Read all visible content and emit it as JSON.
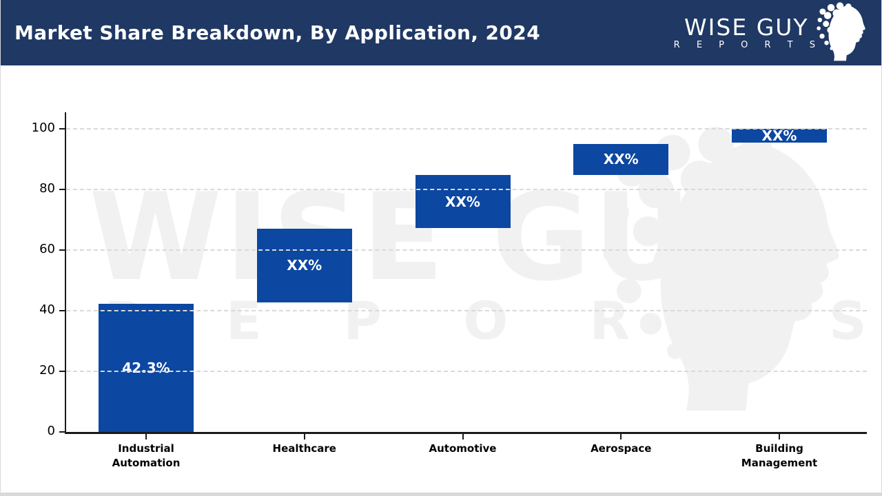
{
  "header": {
    "title": "Market Share Breakdown, By Application, 2024",
    "logo": {
      "line1": "WISE GUY",
      "line2": "R E P O R T S"
    }
  },
  "watermark": {
    "line1": "WISE GUY",
    "line2": "R E P O R T S"
  },
  "icons": {
    "logo_head": "dotted-head-profile-icon",
    "watermark_head": "dotted-head-profile-icon"
  },
  "colors": {
    "header_bg": "#1f3864",
    "bar": "#0c47a1",
    "bar_label": "#ffffff",
    "grid": "#d9d9d9",
    "axis": "#1a1a1a",
    "watermark": "#f1f1f1",
    "title_text": "#ffffff",
    "footer_strip": "#d9d9d9"
  },
  "chart_data": {
    "type": "bar",
    "subtype": "waterfall",
    "title": "Market Share Breakdown, By Application, 2024",
    "categories": [
      "Industrial Automation",
      "Healthcare",
      "Automotive",
      "Aerospace",
      "Building Management"
    ],
    "segments": [
      {
        "category": "Industrial Automation",
        "start": 0,
        "end": 42.3,
        "label": "42.3%"
      },
      {
        "category": "Healthcare",
        "start": 42.7,
        "end": 67.0,
        "label": "XX%"
      },
      {
        "category": "Automotive",
        "start": 67.3,
        "end": 84.6,
        "label": "XX%"
      },
      {
        "category": "Aerospace",
        "start": 84.8,
        "end": 95.0,
        "label": "XX%"
      },
      {
        "category": "Building Management",
        "start": 95.3,
        "end": 100.0,
        "label": "XX%"
      }
    ],
    "xlabel": "",
    "ylabel": "",
    "ylim": [
      0,
      105
    ],
    "yticks": [
      0,
      20,
      40,
      60,
      80,
      100
    ],
    "grid": "horizontal-dashed",
    "legend": null
  }
}
